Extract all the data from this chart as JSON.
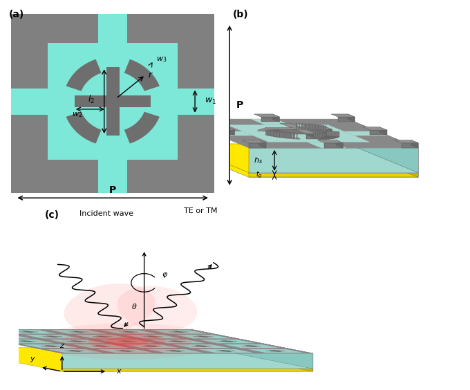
{
  "fig_width": 6.8,
  "fig_height": 5.64,
  "bg_color": "#ffffff",
  "gray_color": "#808080",
  "cyan_color": "#7de8d8",
  "yellow_color": "#FFE800",
  "panel_a_label": "(a)",
  "panel_b_label": "(b)",
  "panel_c_label": "(c)",
  "label_P": "P",
  "label_w1": "w1",
  "label_w2": "w2",
  "label_w3": "w3",
  "label_l2": "l_2",
  "label_r": "r",
  "label_hs": "h_s",
  "label_tg": "t_g",
  "label_te_tm": "TE or TM",
  "label_incident": "Incident wave",
  "label_theta": "θ",
  "label_phi": "φ",
  "label_x": "x",
  "label_y": "y",
  "label_z": "z",
  "gray_top": "#909090",
  "gray_front": "#787878",
  "gray_right": "#686868",
  "cyan_top": "#c8ede8",
  "cyan_front": "#a0d8d0",
  "cyan_right": "#88c8c0",
  "gold_top": "#FFE800",
  "gold_front": "#E8D400",
  "gold_right": "#C8B800"
}
